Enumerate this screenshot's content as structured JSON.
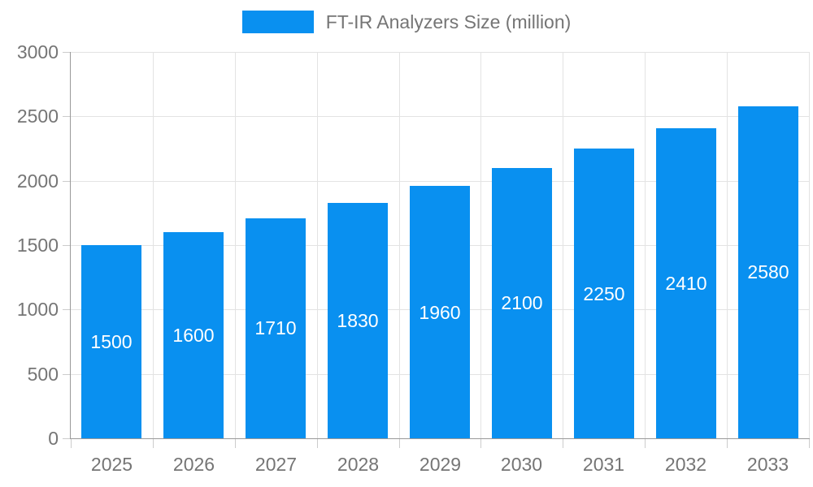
{
  "legend": {
    "label": "FT-IR Analyzers Size (million)"
  },
  "chart_data": {
    "type": "bar",
    "title": "FT-IR Analyzers Size (million)",
    "legend_entries": [
      "FT-IR Analyzers Size (million)"
    ],
    "legend_position": "top-center",
    "categories": [
      "2025",
      "2026",
      "2027",
      "2028",
      "2029",
      "2030",
      "2031",
      "2032",
      "2033"
    ],
    "series": [
      {
        "name": "FT-IR Analyzers Size (million)",
        "values": [
          1500,
          1600,
          1710,
          1830,
          1960,
          2100,
          2250,
          2410,
          2580
        ]
      }
    ],
    "value_labels": "inside-center-white",
    "xlabel": "",
    "ylabel": "",
    "ylim": [
      0,
      3000
    ],
    "yticks": [
      0,
      500,
      1000,
      1500,
      2000,
      2500,
      3000
    ],
    "grid": true,
    "colors": {
      "bar": "#0990f0",
      "grid": "#e3e3e3",
      "axis": "#999999",
      "tick": "#cccccc",
      "label_text": "#757575",
      "value_text": "#ffffff",
      "background": "#ffffff"
    }
  }
}
